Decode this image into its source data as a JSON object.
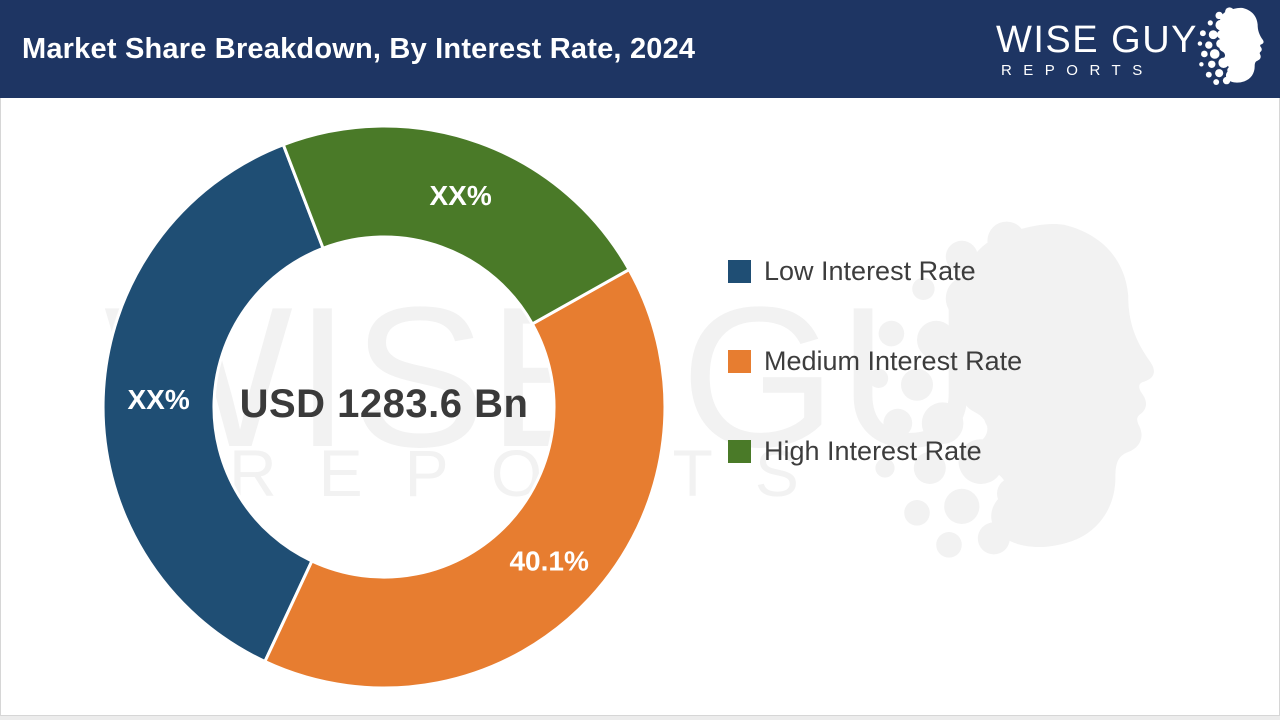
{
  "header": {
    "title": "Market Share Breakdown, By Interest Rate, 2024",
    "logo": {
      "line1": "WISE GUY",
      "line2": "REPORTS"
    }
  },
  "chart_data": {
    "type": "donut",
    "title": "Market Share Breakdown, By Interest Rate, 2024",
    "center_label": "USD 1283.6 Bn",
    "start_angle_deg": 111,
    "direction": "counterclockwise",
    "inner_radius_ratio": 0.605,
    "legend_position": "right",
    "series": [
      {
        "name": "Low Interest Rate",
        "label": "XX%",
        "value_pct": 37.2,
        "value_shown": false,
        "color": "#1f4e74"
      },
      {
        "name": "Medium Interest Rate",
        "label": "40.1%",
        "value_pct": 40.1,
        "value_shown": true,
        "color": "#e77d30"
      },
      {
        "name": "High Interest Rate",
        "label": "XX%",
        "value_pct": 22.7,
        "value_shown": false,
        "color": "#4a7a28"
      }
    ]
  },
  "legend": {
    "items": [
      {
        "label": "Low Interest Rate",
        "color": "#1f4e74"
      },
      {
        "label": "Medium Interest Rate",
        "color": "#e77d30"
      },
      {
        "label": "High Interest Rate",
        "color": "#4a7a28"
      }
    ]
  },
  "watermark": {
    "line1": "WISE GUY",
    "line2": "REPORTS"
  },
  "colors": {
    "header_bg": "#1e3563",
    "frame_border": "#d6d6d6",
    "center_text": "#3a3a3a",
    "watermark": "#f2f2f2"
  }
}
